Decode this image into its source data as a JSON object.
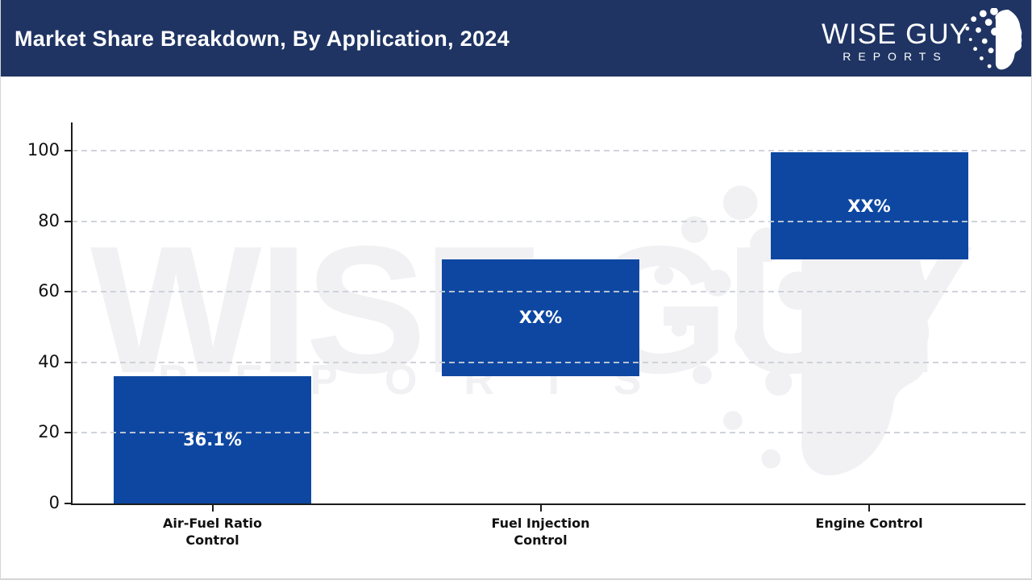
{
  "header": {
    "title": "Market Share Breakdown, By Application, 2024",
    "bg_color": "#1F3463",
    "logo": {
      "line1": "WISE GUY",
      "line2": "REPORTS"
    }
  },
  "watermark": {
    "line1": "WISE GUY",
    "line2": "REPORTS"
  },
  "chart_data": {
    "type": "bar",
    "subtype": "floating-segment-waterfall",
    "title": "Market Share Breakdown, By Application, 2024",
    "categories": [
      "Air-Fuel Ratio Control",
      "Fuel Injection Control",
      "Engine Control"
    ],
    "categories_lines": [
      {
        "l1": "Air-Fuel Ratio",
        "l2": "Control"
      },
      {
        "l1": "Fuel Injection",
        "l2": "Control"
      },
      {
        "l1": "Engine Control",
        "l2": ""
      }
    ],
    "series": [
      {
        "name": "Market Share",
        "ranges": [
          [
            0,
            36.1
          ],
          [
            36.1,
            69.2
          ],
          [
            69.2,
            99.5
          ]
        ]
      }
    ],
    "bar_labels": [
      "36.1%",
      "XX%",
      "XX%"
    ],
    "yticks": [
      0,
      20,
      40,
      60,
      80,
      100
    ],
    "ylim": [
      0,
      105
    ],
    "xlabel": "",
    "ylabel": "",
    "grid": "horizontal-dashed",
    "legend": "none",
    "bar_color": "#0D47A1",
    "bar_label_color": "#ffffff"
  }
}
